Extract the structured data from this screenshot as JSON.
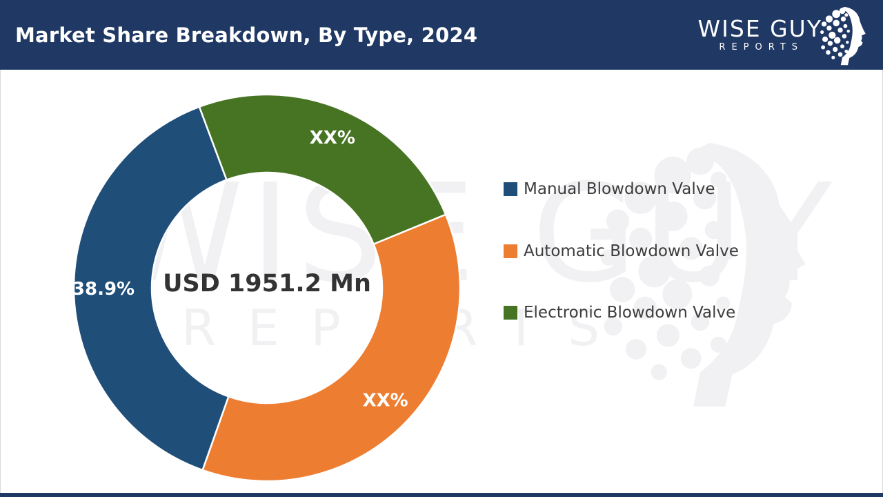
{
  "header": {
    "title": "Market Share Breakdown, By Type, 2024"
  },
  "brand": {
    "line1": "WISE GUY",
    "line2": "REPORTS"
  },
  "watermark": {
    "line1": "WISE GUY",
    "line2": "REPORTS"
  },
  "chart_data": {
    "type": "donut",
    "title": "Market Share Breakdown, By Type, 2024",
    "center_label": "USD 1951.2 Mn",
    "unit": "percent market share",
    "start_angle_deg": 110.5,
    "direction": "counterclockwise",
    "legend_position": "right",
    "segments": [
      {
        "label": "Manual Blowdown Valve",
        "display_value": "38.9%",
        "percent_est": 38.9,
        "color": "#1F4E79"
      },
      {
        "label": "Automatic Blowdown Valve",
        "display_value": "XX%",
        "percent_est": 36.6,
        "color": "#ED7D31"
      },
      {
        "label": "Electronic Blowdown Valve",
        "display_value": "XX%",
        "percent_est": 24.5,
        "color": "#477423"
      }
    ]
  },
  "colors": {
    "header_bg": "#1F3864",
    "footer_bg": "#1F3864",
    "watermark": "#F1F1F3",
    "legend_text": "#3C3C3C",
    "center_text": "#333333"
  }
}
